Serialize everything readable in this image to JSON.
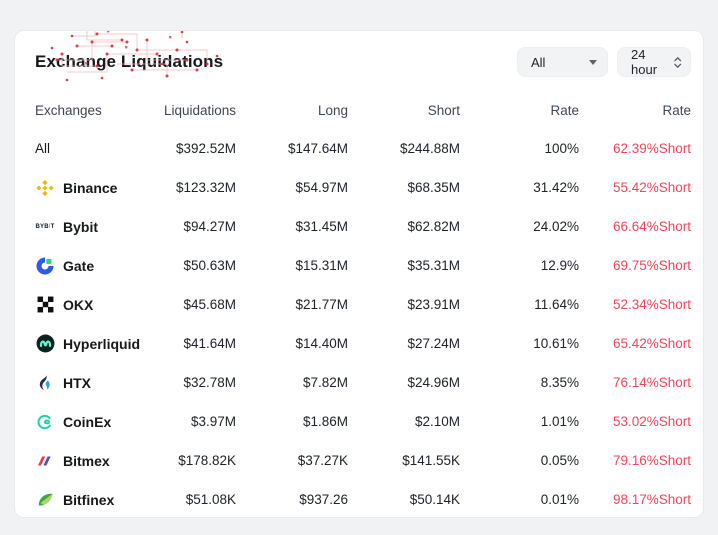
{
  "card": {
    "title": "Exchange Liquidations",
    "controls": {
      "pair_filter": {
        "value": "All"
      },
      "time_filter": {
        "value": "24 hour"
      }
    }
  },
  "table": {
    "headers": [
      "Exchanges",
      "Liquidations",
      "Long",
      "Short",
      "Rate",
      "Rate"
    ],
    "rows": [
      {
        "exchange": "All",
        "icon": "none",
        "liquidations": "$392.52M",
        "long": "$147.64M",
        "short": "$244.88M",
        "rate": "100%",
        "short_rate": "62.39%Short"
      },
      {
        "exchange": "Binance",
        "icon": "binance-icon",
        "liquidations": "$123.32M",
        "long": "$54.97M",
        "short": "$68.35M",
        "rate": "31.42%",
        "short_rate": "55.42%Short"
      },
      {
        "exchange": "Bybit",
        "icon": "bybit-icon",
        "liquidations": "$94.27M",
        "long": "$31.45M",
        "short": "$62.82M",
        "rate": "24.02%",
        "short_rate": "66.64%Short"
      },
      {
        "exchange": "Gate",
        "icon": "gate-icon",
        "liquidations": "$50.63M",
        "long": "$15.31M",
        "short": "$35.31M",
        "rate": "12.9%",
        "short_rate": "69.75%Short"
      },
      {
        "exchange": "OKX",
        "icon": "okx-icon",
        "liquidations": "$45.68M",
        "long": "$21.77M",
        "short": "$23.91M",
        "rate": "11.64%",
        "short_rate": "52.34%Short"
      },
      {
        "exchange": "Hyperliquid",
        "icon": "hyperliquid-icon",
        "liquidations": "$41.64M",
        "long": "$14.40M",
        "short": "$27.24M",
        "rate": "10.61%",
        "short_rate": "65.42%Short"
      },
      {
        "exchange": "HTX",
        "icon": "htx-icon",
        "liquidations": "$32.78M",
        "long": "$7.82M",
        "short": "$24.96M",
        "rate": "8.35%",
        "short_rate": "76.14%Short"
      },
      {
        "exchange": "CoinEx",
        "icon": "coinex-icon",
        "liquidations": "$3.97M",
        "long": "$1.86M",
        "short": "$2.10M",
        "rate": "1.01%",
        "short_rate": "53.02%Short"
      },
      {
        "exchange": "Bitmex",
        "icon": "bitmex-icon",
        "liquidations": "$178.82K",
        "long": "$37.27K",
        "short": "$141.55K",
        "rate": "0.05%",
        "short_rate": "79.16%Short"
      },
      {
        "exchange": "Bitfinex",
        "icon": "bitfinex-icon",
        "liquidations": "$51.08K",
        "long": "$937.26",
        "short": "$50.14K",
        "rate": "0.01%",
        "short_rate": "98.17%Short"
      }
    ]
  },
  "colors": {
    "short_rate_red": "#f5455c",
    "binance_gold": "#f0b90b",
    "bybit_orange": "#f7a600",
    "gate_blue": "#2d5be8",
    "gate_green": "#2fd481",
    "hyperliquid_mint": "#6af0cf",
    "htx_navy": "#262b54",
    "htx_blue": "#2f9fe0",
    "coinex_teal": "#1fd0a9",
    "bitmex_red": "#eb3c4e",
    "bitmex_indigo": "#4d55a1",
    "bitfinex_green": "#3da63f",
    "deco_red": "#d6293b"
  }
}
